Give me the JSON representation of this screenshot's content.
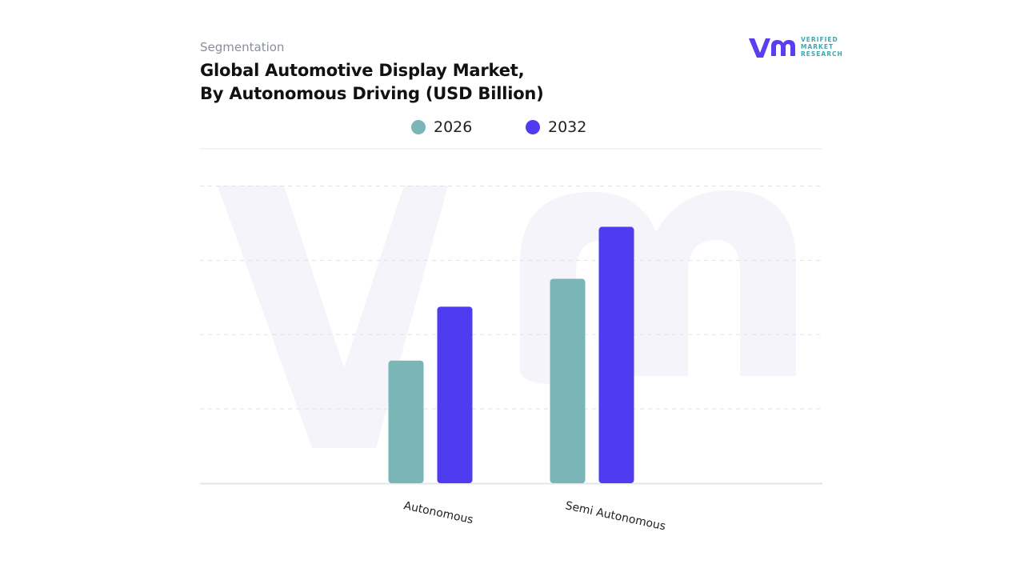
{
  "header": {
    "kicker": "Segmentation",
    "title_line1": "Global Automotive Display Market,",
    "title_line2": "By Autonomous Driving (USD Billion)"
  },
  "logo": {
    "line1": "VERIFIED",
    "line2": "MARKET",
    "line3": "RESEARCH",
    "color_primary": "#5a3ff0",
    "color_secondary": "#3ba8b0"
  },
  "chart_data": {
    "type": "bar",
    "title": "Global Automotive Display Market, By Autonomous Driving (USD Billion)",
    "categories": [
      "Autonomous",
      "Semi Autonomous"
    ],
    "series": [
      {
        "name": "2026",
        "color": "#7ab5b8",
        "values": [
          3.3,
          5.5
        ]
      },
      {
        "name": "2032",
        "color": "#4f3cf0",
        "values": [
          4.75,
          6.9
        ]
      }
    ],
    "ylim": [
      0,
      9
    ],
    "grid": true,
    "legend_position": "top-center",
    "xlabel": "",
    "ylabel": ""
  }
}
